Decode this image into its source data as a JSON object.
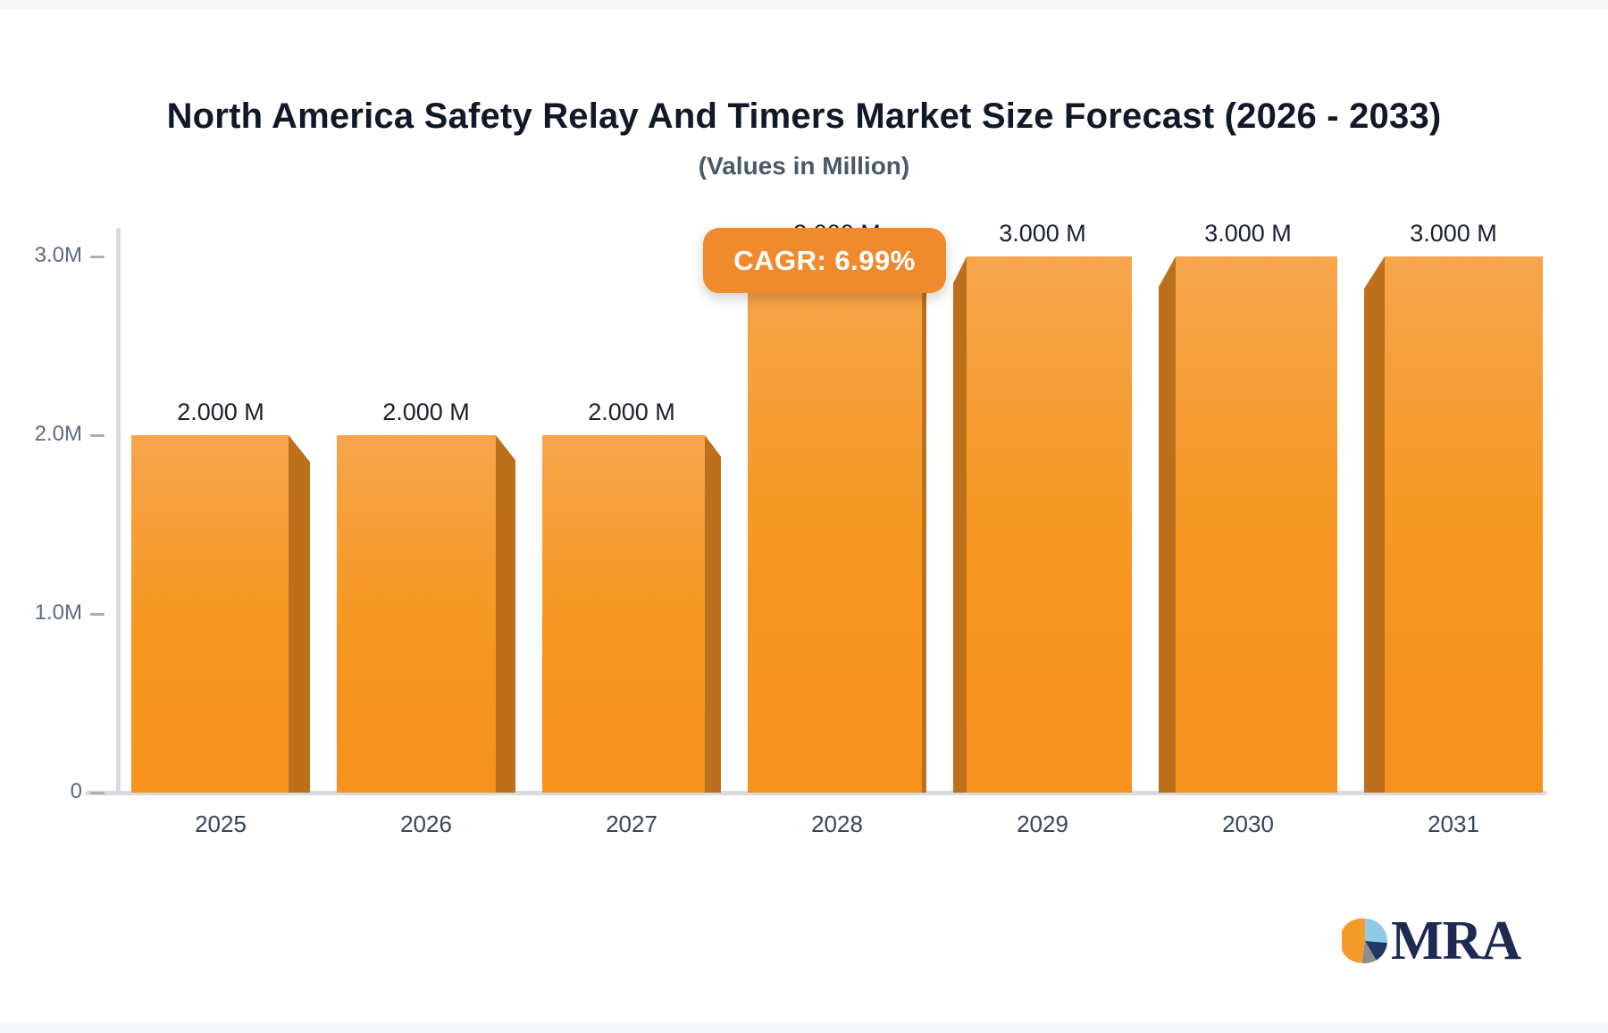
{
  "chart_data": {
    "type": "bar",
    "title": "North America Safety Relay And Timers Market Size Forecast (2026 - 2033)",
    "subtitle": "(Values in Million)",
    "categories": [
      "2025",
      "2026",
      "2027",
      "2028",
      "2029",
      "2030",
      "2031"
    ],
    "values": [
      2.0,
      2.0,
      2.0,
      3.0,
      3.0,
      3.0,
      3.0
    ],
    "value_labels": [
      "2.000 M",
      "2.000 M",
      "2.000 M",
      "3.000 M",
      "3.000 M",
      "3.000 M",
      "3.000 M"
    ],
    "unit": "Million",
    "y_ticks": [
      {
        "value": 3,
        "label": "3.0M"
      },
      {
        "value": 2,
        "label": "2.0M"
      },
      {
        "value": 1,
        "label": "1.0M"
      },
      {
        "value": 0,
        "label": "0"
      }
    ],
    "ylim": [
      0,
      3
    ],
    "grid": "off",
    "legend": "none",
    "cagr_label": "CAGR: 6.99%",
    "colors": {
      "bar_top": "#f6a54c",
      "bar_bottom": "#f6921d",
      "bar_side_3d": "#bc701b",
      "badge_bg": "#ef8b2d",
      "badge_text": "#ffffff",
      "title": "#111827",
      "subtitle": "#4b5868",
      "axis_line": "#d7dbe1",
      "tick_label": "#5d6b80",
      "year_label": "#39465a",
      "value_label": "#1a202c"
    }
  },
  "logo": {
    "text": "MRA",
    "pie_colors": {
      "orange": "#f49b2a",
      "light_blue": "#8fcae7",
      "navy": "#1f3864",
      "gray": "#8e8e8e"
    },
    "text_color": "#1e2a52"
  }
}
